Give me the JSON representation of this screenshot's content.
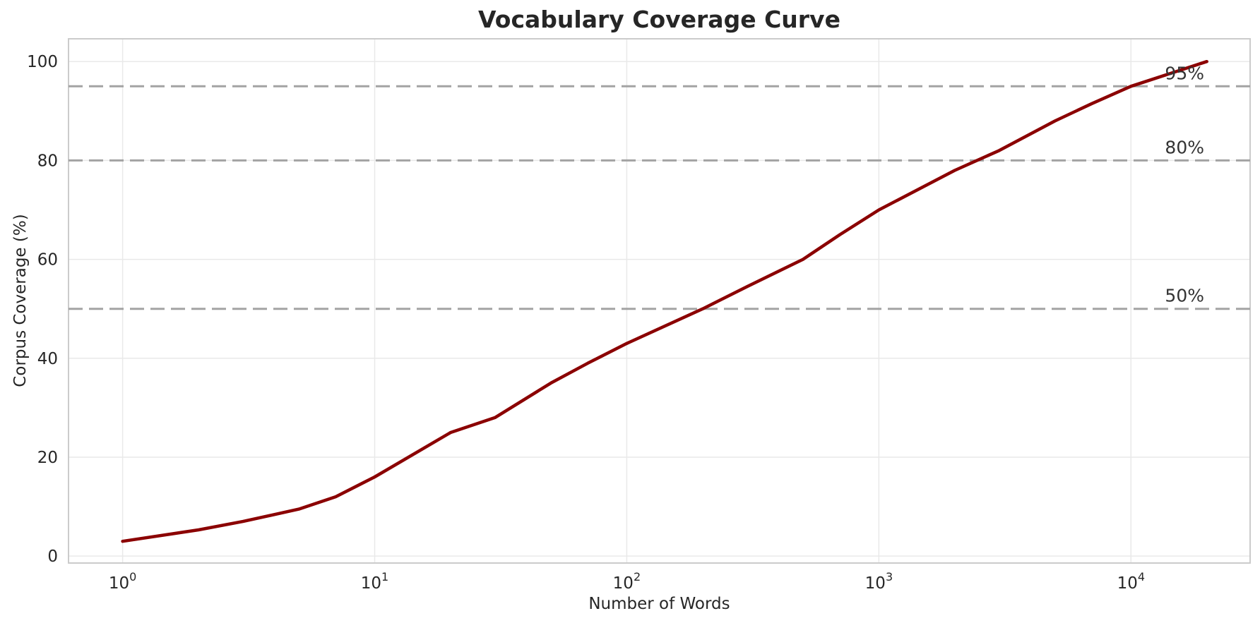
{
  "chart_data": {
    "type": "line",
    "title": "Vocabulary Coverage Curve",
    "xlabel": "Number of Words",
    "ylabel": "Corpus Coverage (%)",
    "x_scale": "log",
    "xlim": [
      0.61,
      29700
    ],
    "ylim": [
      -1.4,
      104.6
    ],
    "grid": true,
    "legend": "none",
    "x_ticks": [
      {
        "value": 1,
        "base": "10",
        "exp": "0"
      },
      {
        "value": 10,
        "base": "10",
        "exp": "1"
      },
      {
        "value": 100,
        "base": "10",
        "exp": "2"
      },
      {
        "value": 1000,
        "base": "10",
        "exp": "3"
      },
      {
        "value": 10000,
        "base": "10",
        "exp": "4"
      }
    ],
    "y_ticks": [
      0,
      20,
      40,
      60,
      80,
      100
    ],
    "series": [
      {
        "name": "corpus-coverage",
        "color": "#8B0000",
        "line_width": 4.5,
        "x": [
          1,
          2,
          3,
          5,
          7,
          10,
          20,
          30,
          50,
          70,
          100,
          200,
          300,
          500,
          700,
          1000,
          2000,
          3000,
          5000,
          7000,
          10000,
          20000
        ],
        "y": [
          3,
          5.3,
          7,
          9.5,
          12,
          16,
          25,
          28,
          35,
          39,
          43,
          50,
          54.5,
          60,
          65,
          70,
          78,
          82,
          88,
          91.5,
          95,
          100
        ]
      }
    ],
    "reference_lines": [
      {
        "value": 50,
        "label": "50%"
      },
      {
        "value": 80,
        "label": "80%"
      },
      {
        "value": 95,
        "label": "95%"
      }
    ],
    "style": {
      "figure_bg": "#ffffff",
      "plot_bg": "#ffffff",
      "grid_color": "#e9e9e9",
      "spine_color": "#cbcbcb",
      "text_color": "#262626",
      "ref_line_color": "#a3a3a3",
      "ref_label_color": "#333333",
      "ref_dash": "20 9"
    }
  }
}
